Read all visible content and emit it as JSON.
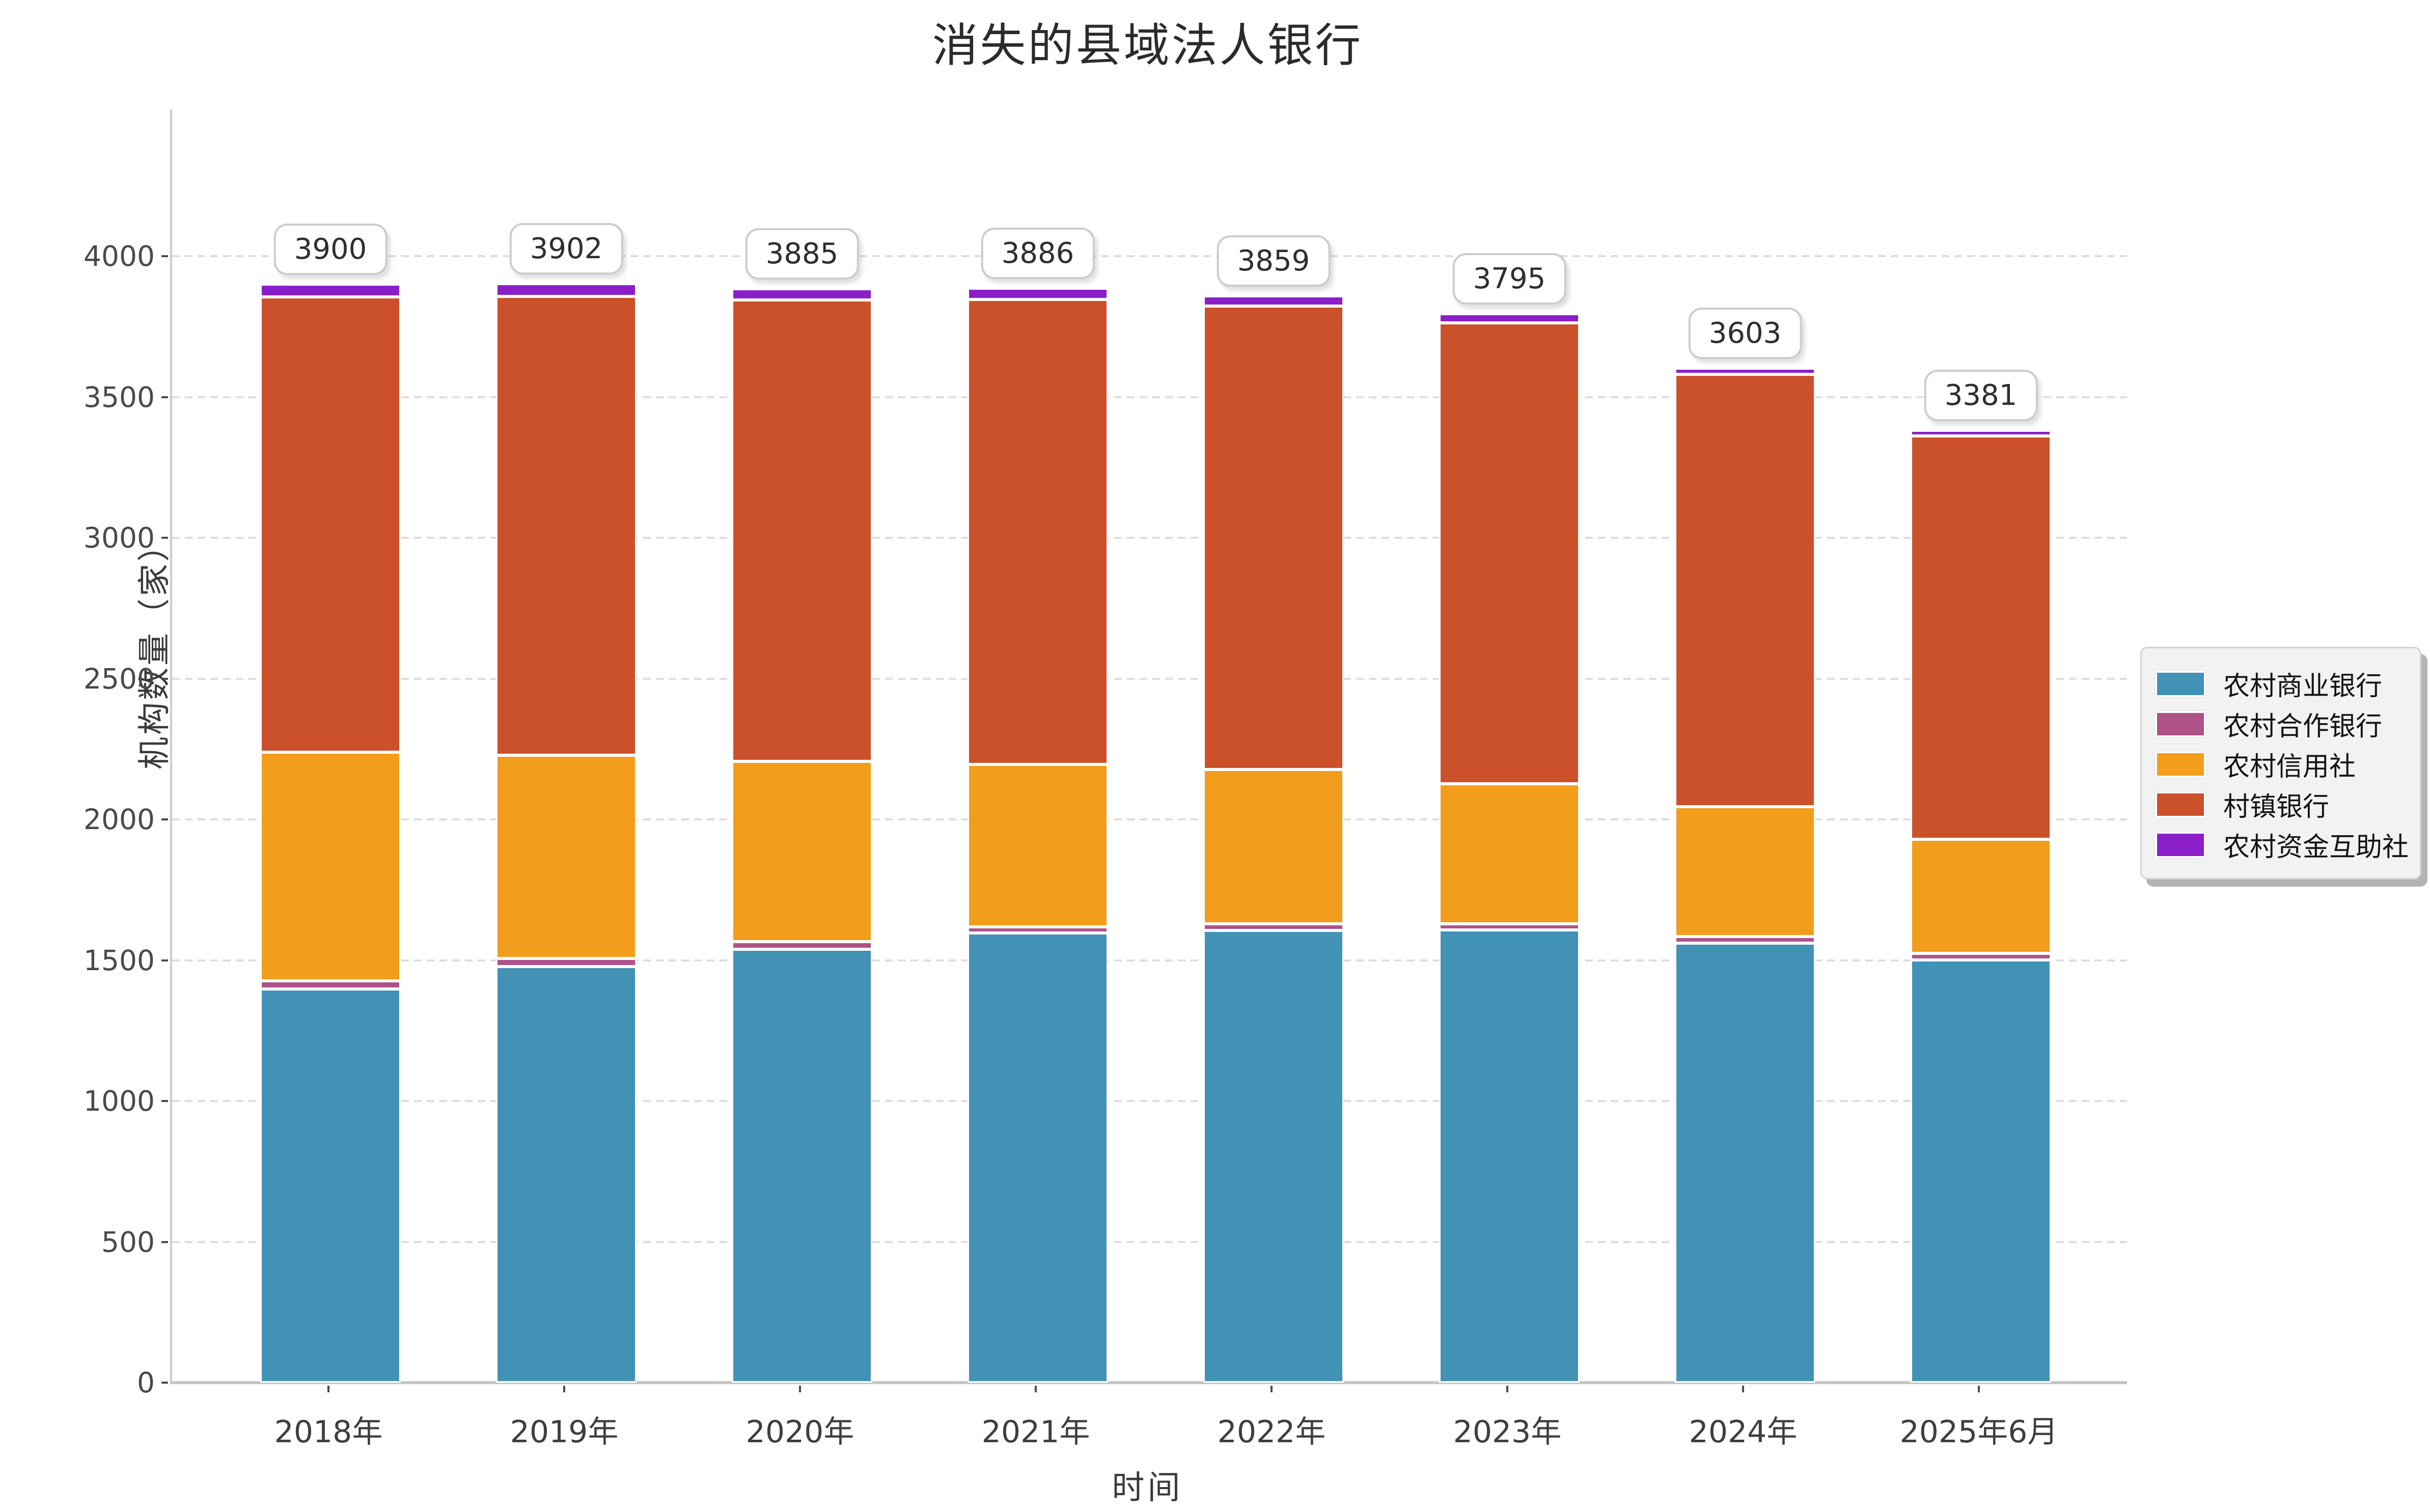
{
  "title": "消失的县域法人银行",
  "chart_data": {
    "type": "bar",
    "stacked": true,
    "title": "消失的县域法人银行",
    "xlabel": "时间",
    "ylabel": "机构数量（家）",
    "categories": [
      "2018年",
      "2019年",
      "2020年",
      "2021年",
      "2022年",
      "2023年",
      "2024年",
      "2025年6月"
    ],
    "series": [
      {
        "name": "农村商业银行",
        "color": "#4292b5",
        "values": [
          1397,
          1478,
          1539,
          1596,
          1606,
          1607,
          1561,
          1501
        ]
      },
      {
        "name": "农村合作银行",
        "color": "#ae5287",
        "values": [
          30,
          28,
          27,
          23,
          23,
          23,
          23,
          23
        ]
      },
      {
        "name": "农村信用社",
        "color": "#f29d1b",
        "values": [
          812,
          722,
          641,
          577,
          548,
          497,
          461,
          405
        ]
      },
      {
        "name": "村镇银行",
        "color": "#cb512b",
        "values": [
          1616,
          1630,
          1637,
          1651,
          1645,
          1636,
          1535,
          1432
        ]
      },
      {
        "name": "农村资金互助社",
        "color": "#8a1fc9",
        "values": [
          45,
          44,
          41,
          39,
          37,
          32,
          23,
          20
        ]
      }
    ],
    "totals": [
      3900,
      3902,
      3885,
      3886,
      3859,
      3795,
      3603,
      3381
    ],
    "y_ticks": [
      0,
      500,
      1000,
      1500,
      2000,
      2500,
      3000,
      3500,
      4000
    ],
    "ylim": [
      0,
      4520
    ],
    "grid": "horizontal-dashed",
    "legend_position": "center-right",
    "bar_label_style": "rounded-white-box"
  },
  "legend": {
    "entries": [
      "农村商业银行",
      "农村合作银行",
      "农村信用社",
      "村镇银行",
      "农村资金互助社"
    ]
  }
}
